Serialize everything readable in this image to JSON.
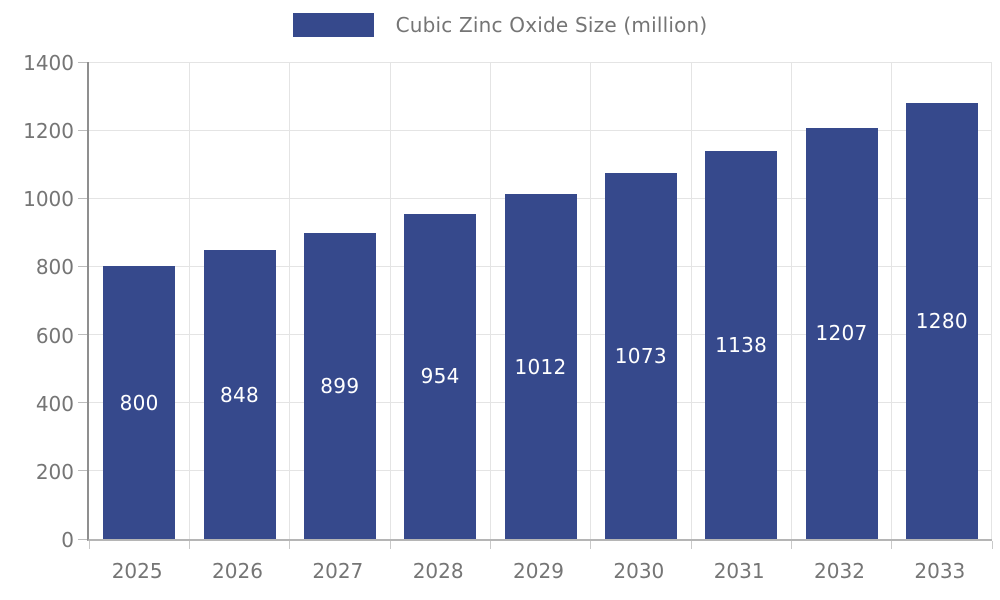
{
  "legend": {
    "label": "Cubic Zinc Oxide Size (million)"
  },
  "colors": {
    "bar": "#36498c",
    "bar_label": "#ffffff",
    "axis_text": "#757575",
    "grid_line": "#e4e4e4",
    "y_axis_line": "#8f8f8f",
    "x_axis_line": "#b5b5b5"
  },
  "chart_data": {
    "type": "bar",
    "title": "",
    "xlabel": "",
    "ylabel": "",
    "categories": [
      "2025",
      "2026",
      "2027",
      "2028",
      "2029",
      "2030",
      "2031",
      "2032",
      "2033"
    ],
    "series": [
      {
        "name": "Cubic Zinc Oxide Size (million)",
        "values": [
          800,
          848,
          899,
          954,
          1012,
          1073,
          1138,
          1207,
          1280
        ]
      }
    ],
    "ylim": [
      0,
      1400
    ],
    "ytick_step": 200,
    "yticks": [
      0,
      200,
      400,
      600,
      800,
      1000,
      1200,
      1400
    ],
    "grid": true,
    "legend_position": "top",
    "bar_value_labels": "inside-middle"
  }
}
